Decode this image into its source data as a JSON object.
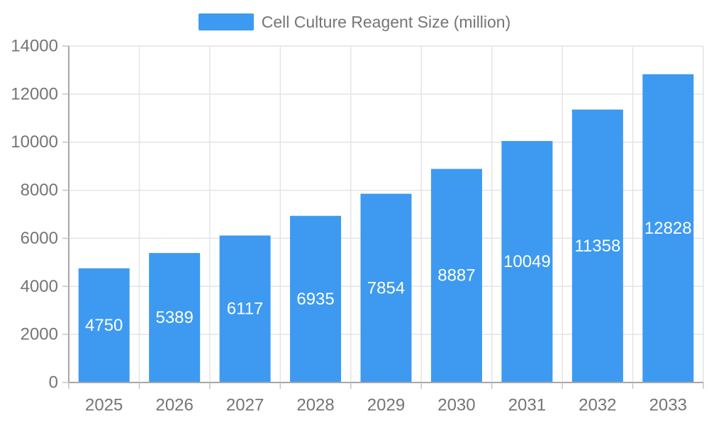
{
  "chart_data": {
    "type": "bar",
    "title": "Cell Culture Reagent Size (million)",
    "legend": {
      "label": "Cell Culture Reagent Size (million)",
      "position": "top-center"
    },
    "categories": [
      "2025",
      "2026",
      "2027",
      "2028",
      "2029",
      "2030",
      "2031",
      "2032",
      "2033"
    ],
    "series": [
      {
        "name": "Cell Culture Reagent Size (million)",
        "values": [
          4750,
          5389,
          6117,
          6935,
          7854,
          8887,
          10049,
          11358,
          12828
        ]
      }
    ],
    "xlabel": "",
    "ylabel": "",
    "ylim": [
      0,
      14000
    ],
    "y_tick_step": 2000,
    "y_tick_labels": [
      "0",
      "2000",
      "4000",
      "6000",
      "8000",
      "10000",
      "12000",
      "14000"
    ],
    "grid": true,
    "value_labels": "inside-center",
    "colors": {
      "bar": "#3D9AF0",
      "value_label": "#FFFFFF",
      "axis_text": "#757575",
      "axis_line": "#A6A6A6",
      "tick_line": "#C4C4C4",
      "grid_line": "#E4E4E4",
      "background": "#FFFFFF"
    }
  }
}
